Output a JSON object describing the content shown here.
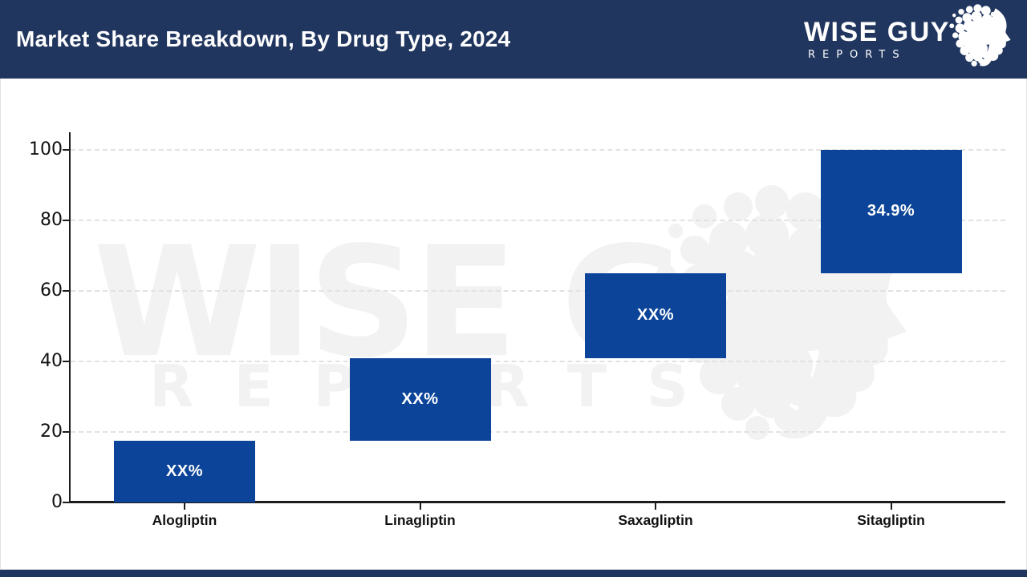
{
  "header": {
    "title": "Market Share Breakdown, By Drug Type, 2024",
    "logo": {
      "wordmark": "WISE GUY",
      "subtitle": "REPORTS"
    }
  },
  "watermark": {
    "wordmark": "WISE GUY",
    "subtitle": "REPORTS"
  },
  "chart_data": {
    "type": "bar",
    "subtype": "floating-waterfall",
    "title": "Market Share Breakdown, By Drug Type, 2024",
    "categories": [
      "Alogliptin",
      "Linagliptin",
      "Saxagliptin",
      "Sitagliptin"
    ],
    "bars": [
      {
        "category": "Alogliptin",
        "start": 0,
        "end": 17.5,
        "height": 17.5,
        "label": "XX%"
      },
      {
        "category": "Linagliptin",
        "start": 17.5,
        "end": 41.0,
        "height": 23.5,
        "label": "XX%"
      },
      {
        "category": "Saxagliptin",
        "start": 41.0,
        "end": 65.1,
        "height": 24.1,
        "label": "XX%"
      },
      {
        "category": "Sitagliptin",
        "start": 65.1,
        "end": 100,
        "height": 34.9,
        "label": "34.9%"
      }
    ],
    "yticks": [
      0,
      20,
      40,
      60,
      80,
      100
    ],
    "ylim": [
      0,
      104
    ],
    "xlabel": "",
    "ylabel": "",
    "grid": "horizontal-dashed",
    "legend": "none",
    "bar_color": "#0b4499",
    "value_label_color": "#ffffff"
  },
  "colors": {
    "header_bg": "#21365f",
    "footer_bg": "#21365f",
    "bar": "#0b4499",
    "axis": "#1c1c1c",
    "grid": "#e2e2e2",
    "watermark": "#f2f2f2",
    "title_text": "#ffffff"
  }
}
